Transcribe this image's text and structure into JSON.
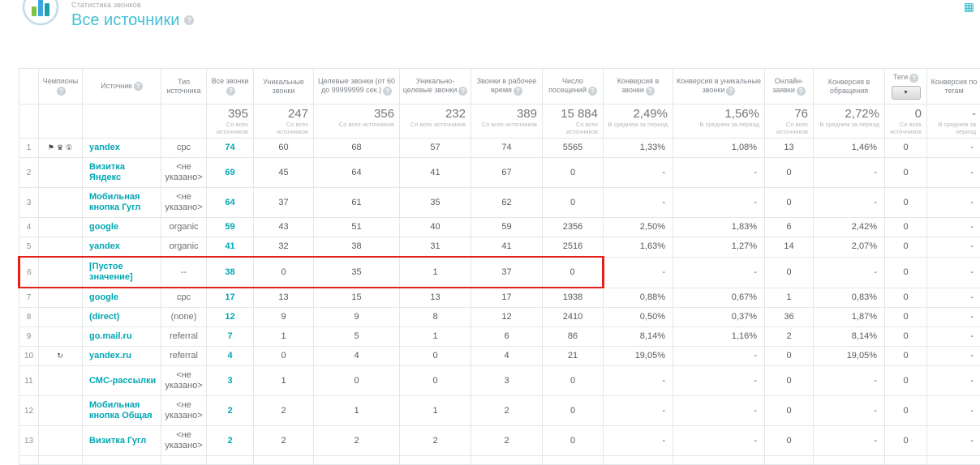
{
  "page": {
    "breadcrumb": "Статистика звонков",
    "title": "Все источники",
    "corner_icon": "▦",
    "accent_color": "#44c0d2",
    "link_color": "#00a7b3",
    "highlight_color": "#e32119"
  },
  "icons": {
    "help": "?",
    "caret": "▼",
    "flag": "⚑",
    "crown": "♛",
    "medal": "①",
    "repeat": "↻"
  },
  "table": {
    "columns": [
      {
        "key": "champions",
        "label": "Чемпионы",
        "help": true
      },
      {
        "key": "source",
        "label": "Источник",
        "help": true
      },
      {
        "key": "type",
        "label": "Тип источника",
        "help": false
      },
      {
        "key": "all_calls",
        "label": "Все звонки",
        "help": true
      },
      {
        "key": "unique_calls",
        "label": "Уникальные звонки",
        "help": false
      },
      {
        "key": "target_calls",
        "label": "Целевые звонки (от 60 до 99999999 сек.)",
        "help": true
      },
      {
        "key": "unique_target_calls",
        "label": "Уникально-целевые звонки",
        "help": true
      },
      {
        "key": "work_time_calls",
        "label": "Звонки в рабочее время",
        "help": true
      },
      {
        "key": "visits",
        "label": "Число посещений",
        "help": true
      },
      {
        "key": "conv_calls",
        "label": "Конверсия в звонки",
        "help": true
      },
      {
        "key": "conv_unique_calls",
        "label": "Конверсия в уникальные звонки",
        "help": true
      },
      {
        "key": "online_leads",
        "label": "Онлайн-заявки",
        "help": true
      },
      {
        "key": "conv_leads",
        "label": "Конверсия в обращения",
        "help": false
      },
      {
        "key": "tags",
        "label": "Теги",
        "help": true,
        "dropdown": true
      },
      {
        "key": "conv_tags",
        "label": "Конверсия по тегам",
        "help": false
      }
    ],
    "summary": {
      "all_calls": {
        "value": "395",
        "note": "Со всех источников"
      },
      "unique_calls": {
        "value": "247",
        "note": "Со всех источников"
      },
      "target_calls": {
        "value": "356",
        "note": "Со всех источников"
      },
      "unique_target_calls": {
        "value": "232",
        "note": "Со всех источников"
      },
      "work_time_calls": {
        "value": "389",
        "note": "Со всех источников"
      },
      "visits": {
        "value": "15 884",
        "note": "Со всех источников"
      },
      "conv_calls": {
        "value": "2,49%",
        "note": "В среднем за период"
      },
      "conv_unique_calls": {
        "value": "1,56%",
        "note": "В среднем за период"
      },
      "online_leads": {
        "value": "76",
        "note": "Со всех источников"
      },
      "conv_leads": {
        "value": "2,72%",
        "note": "В среднем за период"
      },
      "tags": {
        "value": "0",
        "note": "Со всех источников"
      },
      "conv_tags": {
        "value": "-",
        "note": "В среднем за период"
      }
    },
    "rows": [
      {
        "num": "1",
        "champions": [
          "flag",
          "crown",
          "medal"
        ],
        "source": "yandex",
        "type": "cpc",
        "all_calls": "74",
        "unique_calls": "60",
        "target_calls": "68",
        "unique_target_calls": "57",
        "work_time_calls": "74",
        "visits": "5565",
        "conv_calls": "1,33%",
        "conv_unique_calls": "1,08%",
        "online_leads": "13",
        "conv_leads": "1,46%",
        "tags": "0",
        "conv_tags": "-",
        "highlight": false
      },
      {
        "num": "2",
        "champions": [],
        "source": "Визитка Яндекс",
        "type": "<не указано>",
        "all_calls": "69",
        "unique_calls": "45",
        "target_calls": "64",
        "unique_target_calls": "41",
        "work_time_calls": "67",
        "visits": "0",
        "conv_calls": "-",
        "conv_unique_calls": "-",
        "online_leads": "0",
        "conv_leads": "-",
        "tags": "0",
        "conv_tags": "-",
        "highlight": false
      },
      {
        "num": "3",
        "champions": [],
        "source": "Мобильная кнопка Гугл",
        "type": "<не указано>",
        "all_calls": "64",
        "unique_calls": "37",
        "target_calls": "61",
        "unique_target_calls": "35",
        "work_time_calls": "62",
        "visits": "0",
        "conv_calls": "-",
        "conv_unique_calls": "-",
        "online_leads": "0",
        "conv_leads": "-",
        "tags": "0",
        "conv_tags": "-",
        "highlight": false
      },
      {
        "num": "4",
        "champions": [],
        "source": "google",
        "type": "organic",
        "all_calls": "59",
        "unique_calls": "43",
        "target_calls": "51",
        "unique_target_calls": "40",
        "work_time_calls": "59",
        "visits": "2356",
        "conv_calls": "2,50%",
        "conv_unique_calls": "1,83%",
        "online_leads": "6",
        "conv_leads": "2,42%",
        "tags": "0",
        "conv_tags": "-",
        "highlight": false
      },
      {
        "num": "5",
        "champions": [],
        "source": "yandex",
        "type": "organic",
        "all_calls": "41",
        "unique_calls": "32",
        "target_calls": "38",
        "unique_target_calls": "31",
        "work_time_calls": "41",
        "visits": "2516",
        "conv_calls": "1,63%",
        "conv_unique_calls": "1,27%",
        "online_leads": "14",
        "conv_leads": "2,07%",
        "tags": "0",
        "conv_tags": "-",
        "highlight": false
      },
      {
        "num": "6",
        "champions": [],
        "source": "[Пустое значение]",
        "type": "--",
        "all_calls": "38",
        "unique_calls": "0",
        "target_calls": "35",
        "unique_target_calls": "1",
        "work_time_calls": "37",
        "visits": "0",
        "conv_calls": "-",
        "conv_unique_calls": "-",
        "online_leads": "0",
        "conv_leads": "-",
        "tags": "0",
        "conv_tags": "-",
        "highlight": true
      },
      {
        "num": "7",
        "champions": [],
        "source": "google",
        "type": "cpc",
        "all_calls": "17",
        "unique_calls": "13",
        "target_calls": "15",
        "unique_target_calls": "13",
        "work_time_calls": "17",
        "visits": "1938",
        "conv_calls": "0,88%",
        "conv_unique_calls": "0,67%",
        "online_leads": "1",
        "conv_leads": "0,83%",
        "tags": "0",
        "conv_tags": "-",
        "highlight": false
      },
      {
        "num": "8",
        "champions": [],
        "source": "(direct)",
        "type": "(none)",
        "all_calls": "12",
        "unique_calls": "9",
        "target_calls": "9",
        "unique_target_calls": "8",
        "work_time_calls": "12",
        "visits": "2410",
        "conv_calls": "0,50%",
        "conv_unique_calls": "0,37%",
        "online_leads": "36",
        "conv_leads": "1,87%",
        "tags": "0",
        "conv_tags": "-",
        "highlight": false
      },
      {
        "num": "9",
        "champions": [],
        "source": "go.mail.ru",
        "type": "referral",
        "all_calls": "7",
        "unique_calls": "1",
        "target_calls": "5",
        "unique_target_calls": "1",
        "work_time_calls": "6",
        "visits": "86",
        "conv_calls": "8,14%",
        "conv_unique_calls": "1,16%",
        "online_leads": "2",
        "conv_leads": "8,14%",
        "tags": "0",
        "conv_tags": "-",
        "highlight": false
      },
      {
        "num": "10",
        "champions": [
          "repeat"
        ],
        "source": "yandex.ru",
        "type": "referral",
        "all_calls": "4",
        "unique_calls": "0",
        "target_calls": "4",
        "unique_target_calls": "0",
        "work_time_calls": "4",
        "visits": "21",
        "conv_calls": "19,05%",
        "conv_unique_calls": "-",
        "online_leads": "0",
        "conv_leads": "19,05%",
        "tags": "0",
        "conv_tags": "-",
        "highlight": false
      },
      {
        "num": "11",
        "champions": [],
        "source": "СМС-рассылки",
        "type": "<не указано>",
        "all_calls": "3",
        "unique_calls": "1",
        "target_calls": "0",
        "unique_target_calls": "0",
        "work_time_calls": "3",
        "visits": "0",
        "conv_calls": "-",
        "conv_unique_calls": "-",
        "online_leads": "0",
        "conv_leads": "-",
        "tags": "0",
        "conv_tags": "-",
        "highlight": false
      },
      {
        "num": "12",
        "champions": [],
        "source": "Мобильная кнопка Общая",
        "type": "<не указано>",
        "all_calls": "2",
        "unique_calls": "2",
        "target_calls": "1",
        "unique_target_calls": "1",
        "work_time_calls": "2",
        "visits": "0",
        "conv_calls": "-",
        "conv_unique_calls": "-",
        "online_leads": "0",
        "conv_leads": "-",
        "tags": "0",
        "conv_tags": "-",
        "highlight": false
      },
      {
        "num": "13",
        "champions": [],
        "source": "Визитка Гугл",
        "type": "<не указано>",
        "all_calls": "2",
        "unique_calls": "2",
        "target_calls": "2",
        "unique_target_calls": "2",
        "work_time_calls": "2",
        "visits": "0",
        "conv_calls": "-",
        "conv_unique_calls": "-",
        "online_leads": "0",
        "conv_leads": "-",
        "tags": "0",
        "conv_tags": "-",
        "highlight": false
      }
    ]
  }
}
